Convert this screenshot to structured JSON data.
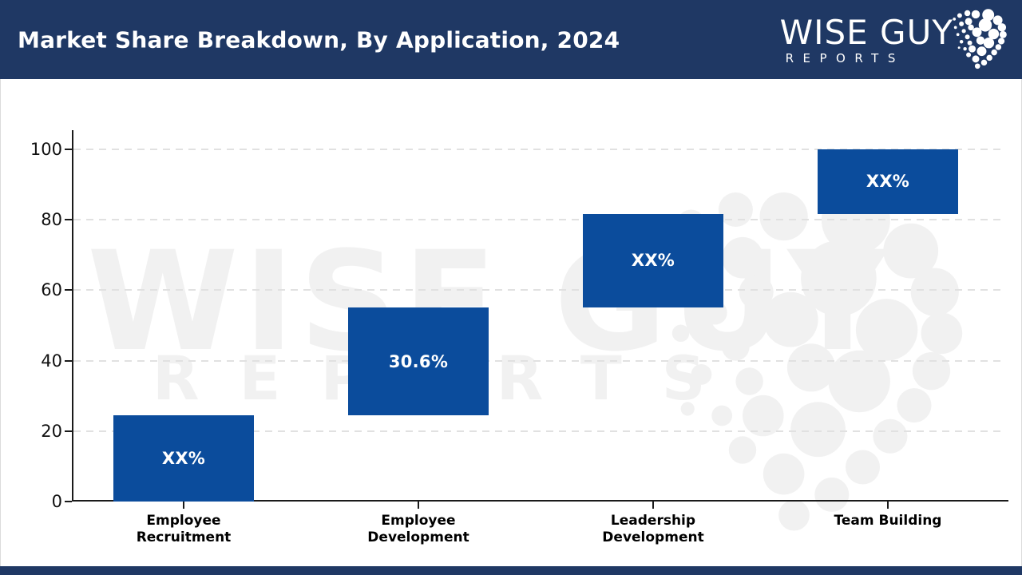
{
  "header": {
    "bg_color": "#1F3864",
    "title": "Market Share Breakdown, By Application, 2024",
    "logo": {
      "line1": "WISE GUY",
      "line2": "REPORTS"
    }
  },
  "watermark": {
    "line1": "WISE GUY",
    "line2": "REPORTS"
  },
  "chart_data": {
    "type": "bar",
    "subtype": "waterfall-floating-bars",
    "title": "Market Share Breakdown, By Application, 2024",
    "categories": [
      "Employee Recruitment",
      "Employee Development",
      "Leadership Development",
      "Team Building"
    ],
    "category_lines": [
      [
        "Employee",
        "Recruitment"
      ],
      [
        "Employee",
        "Development"
      ],
      [
        "Leadership",
        "Development"
      ],
      [
        "Team Building"
      ]
    ],
    "segments": [
      {
        "category": "Employee Recruitment",
        "start": 0,
        "end": 24.4,
        "label": "XX%"
      },
      {
        "category": "Employee Development",
        "start": 24.5,
        "end": 55.1,
        "label": "30.6%"
      },
      {
        "category": "Leadership Development",
        "start": 55.2,
        "end": 81.6,
        "label": "XX%"
      },
      {
        "category": "Team Building",
        "start": 81.7,
        "end": 100,
        "label": "XX%"
      }
    ],
    "ylim": [
      0,
      100
    ],
    "yticks": [
      0,
      20,
      40,
      60,
      80,
      100
    ],
    "xlabel": "",
    "ylabel": "",
    "bar_color": "#0B4C9C",
    "grid": "horizontal-dashed",
    "legend": "none"
  }
}
